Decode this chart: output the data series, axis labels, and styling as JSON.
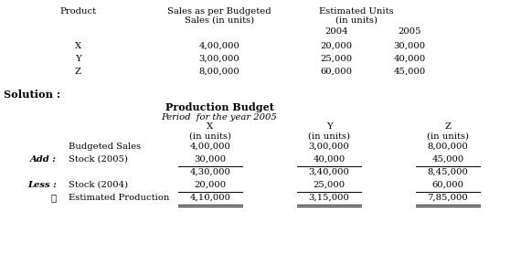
{
  "bg_color": "#ffffff",
  "top_table": {
    "rows": [
      [
        "X",
        "4,00,000",
        "20,000",
        "30,000"
      ],
      [
        "Y",
        "3,00,000",
        "25,000",
        "40,000"
      ],
      [
        "Z",
        "8,00,000",
        "60,000",
        "45,000"
      ]
    ]
  },
  "solution_label": "Solution :",
  "production_budget_title": "Production Budget",
  "production_budget_subtitle": "Period  for the year 2005",
  "bottom_table": {
    "rows": [
      {
        "label": "Budgeted Sales",
        "prefix": "",
        "values": [
          "4,00,000",
          "3,00,000",
          "8,00,000"
        ],
        "underline_below": false
      },
      {
        "label": "Stock (2005)",
        "prefix": "Add :",
        "values": [
          "30,000",
          "40,000",
          "45,000"
        ],
        "underline_below": true
      },
      {
        "label": "",
        "prefix": "",
        "values": [
          "4,30,000",
          "3,40,000",
          "8,45,000"
        ],
        "underline_below": false
      },
      {
        "label": "Stock (2004)",
        "prefix": "Less :",
        "values": [
          "20,000",
          "25,000",
          "60,000"
        ],
        "underline_below": true
      },
      {
        "label": "Estimated Production",
        "prefix": "∴",
        "values": [
          "4,10,000",
          "3,15,000",
          "7,85,000"
        ],
        "underline_below": true
      }
    ]
  }
}
